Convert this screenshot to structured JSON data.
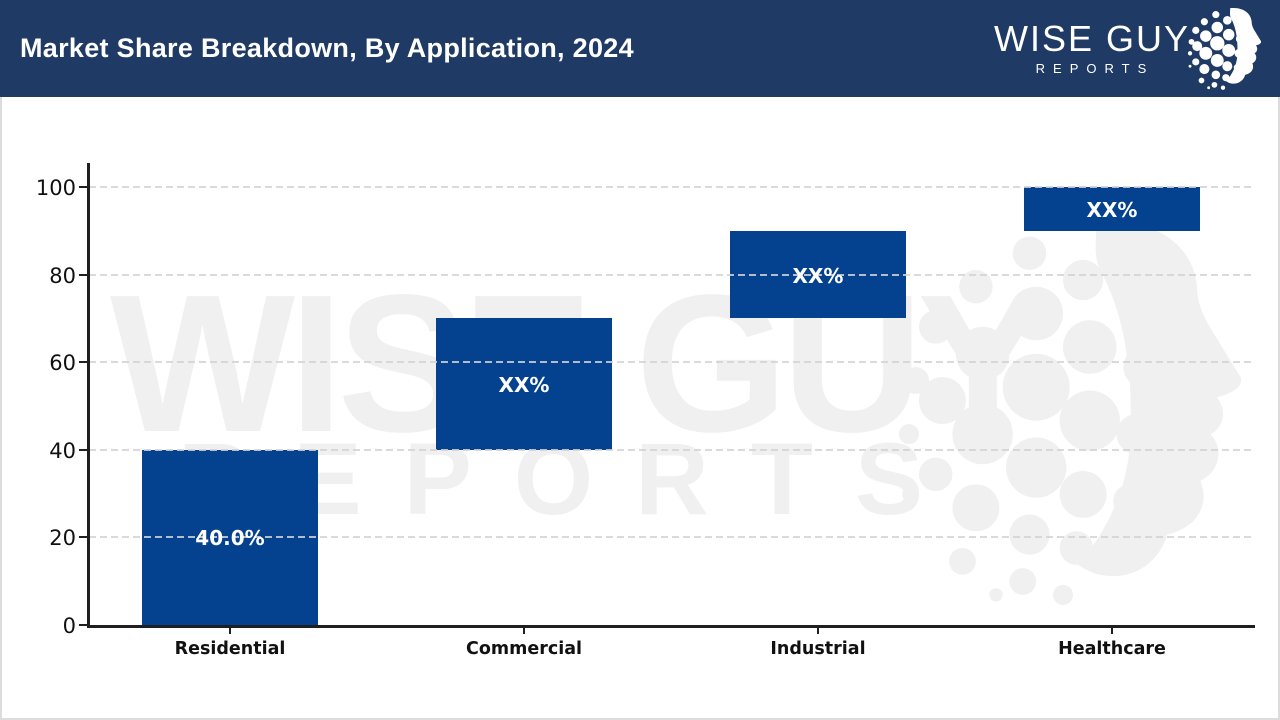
{
  "header": {
    "title": "Market Share Breakdown, By Application, 2024",
    "logo": {
      "line1": "WISE GUY",
      "line2": "REPORTS"
    }
  },
  "watermark": {
    "line1": "WISE GUY",
    "line2": "REPORTS"
  },
  "chart_data": {
    "type": "bar",
    "subtype": "waterfall",
    "title": "Market Share Breakdown, By Application, 2024",
    "xlabel": "",
    "ylabel": "",
    "categories": [
      "Residential",
      "Commercial",
      "Industrial",
      "Healthcare"
    ],
    "segments": [
      {
        "category": "Residential",
        "start": 0,
        "end": 40,
        "value": 40,
        "label": "40.0%"
      },
      {
        "category": "Commercial",
        "start": 40,
        "end": 70,
        "value": 30,
        "label": "XX%"
      },
      {
        "category": "Industrial",
        "start": 70,
        "end": 90,
        "value": 20,
        "label": "XX%"
      },
      {
        "category": "Healthcare",
        "start": 90,
        "end": 100,
        "value": 10,
        "label": "XX%"
      }
    ],
    "yticks": [
      0,
      20,
      40,
      60,
      80,
      100
    ],
    "ylim": [
      0,
      100
    ],
    "grid": "horizontal dashed, drawn over bars",
    "legend": "none",
    "bar_color": "#04418F",
    "bar_label_color": "#FFFFFF"
  },
  "colors": {
    "header_bg": "#1F3A64",
    "accent_bar": "#04418F",
    "watermark": "#F0F0F0",
    "axis": "#1F1F1F",
    "gridline": "#D3D3D3",
    "page_border": "#DCDCDC",
    "background": "#FFFFFF"
  }
}
